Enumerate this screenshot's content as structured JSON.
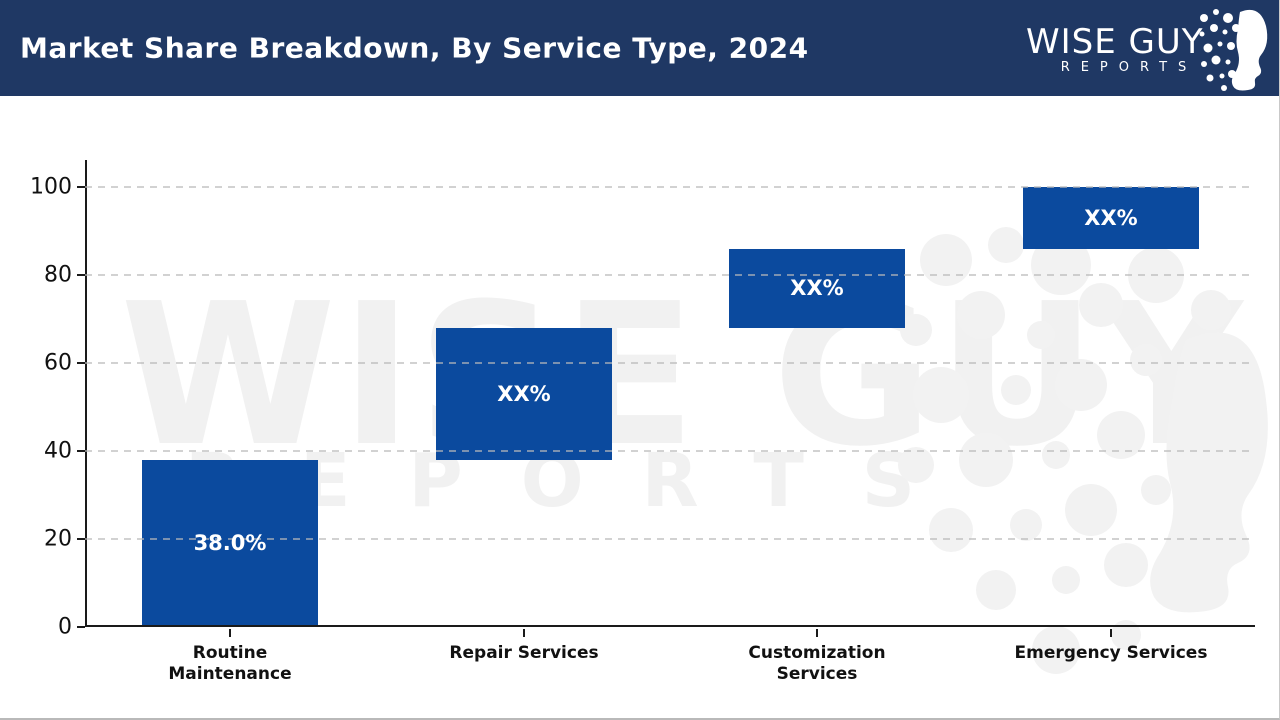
{
  "header": {
    "title": "Market Share Breakdown, By Service Type, 2024",
    "bg_color": "#1f3864",
    "logo": {
      "line1": "WISE GUY",
      "line2": "REPORTS",
      "head_icon": "dotted-face-profile"
    }
  },
  "watermark": {
    "line1": "WISE GUY",
    "line2": "REPORTS",
    "head_icon": "dotted-face-profile"
  },
  "chart_data": {
    "type": "bar",
    "subtype": "stacked-waterfall-percent",
    "title": "Market Share Breakdown, By Service Type, 2024",
    "categories": [
      "Routine\nMaintenance",
      "Repair Services",
      "Customization\nServices",
      "Emergency Services"
    ],
    "segments": [
      {
        "category": "Routine Maintenance",
        "start": 0,
        "end": 38,
        "value": 38,
        "label": "38.0%"
      },
      {
        "category": "Repair Services",
        "start": 38,
        "end": 68,
        "value": 30,
        "label": "XX%"
      },
      {
        "category": "Customization Services",
        "start": 68,
        "end": 86,
        "value": 18,
        "label": "XX%"
      },
      {
        "category": "Emergency Services",
        "start": 86,
        "end": 100,
        "value": 14,
        "label": "XX%"
      }
    ],
    "xlabel": "",
    "ylabel": "",
    "y_ticks": [
      0,
      20,
      40,
      60,
      80,
      100
    ],
    "ylim": [
      0,
      106
    ],
    "grid": true,
    "grid_style": "dashed",
    "bar_color": "#0b4a9e",
    "bar_label_color": "#ffffff",
    "axis_color": "#1a1a1a",
    "legend": "none"
  }
}
